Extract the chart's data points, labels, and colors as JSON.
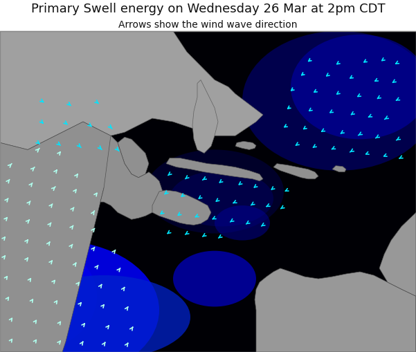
{
  "title": "Primary Swell energy on Wednesday 26 Mar at 2pm CDT",
  "subtitle": "Arrows show the wind wave direction",
  "title_fontsize": 13,
  "subtitle_fontsize": 10,
  "title_color": "#111111",
  "background_color": "#f0f0f0",
  "fig_width": 6.01,
  "fig_height": 5.1,
  "dpi": 100
}
